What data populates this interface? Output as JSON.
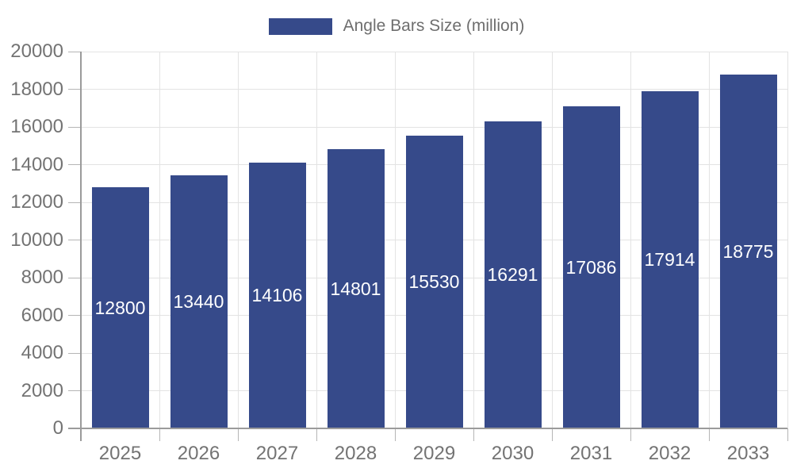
{
  "chart_data": {
    "type": "bar",
    "title": "Angle Bars Size (million)",
    "legend": {
      "label": "Angle Bars Size (million)",
      "position": "top"
    },
    "categories": [
      "2025",
      "2026",
      "2027",
      "2028",
      "2029",
      "2030",
      "2031",
      "2032",
      "2033"
    ],
    "values": [
      12800,
      13440,
      14106,
      14801,
      15530,
      16291,
      17086,
      17914,
      18775
    ],
    "bar_labels": [
      "12800",
      "13440",
      "14106",
      "14801",
      "15530",
      "16291",
      "17086",
      "17914",
      "18775"
    ],
    "xlabel": "",
    "ylabel": "",
    "ylim": [
      0,
      20000
    ],
    "ytick_step": 2000,
    "ytick_labels": [
      "0",
      "2000",
      "4000",
      "6000",
      "8000",
      "10000",
      "12000",
      "14000",
      "16000",
      "18000",
      "20000"
    ],
    "grid": true,
    "colors": {
      "bar": "#364a8a",
      "bar_label_text": "#ffffff",
      "axis_text": "#737373",
      "legend_text": "#6e6e6e",
      "gridline": "#e3e3e3",
      "tick": "#b5b5b5",
      "axis_line": "#9b9b9b",
      "background": "#ffffff"
    }
  }
}
